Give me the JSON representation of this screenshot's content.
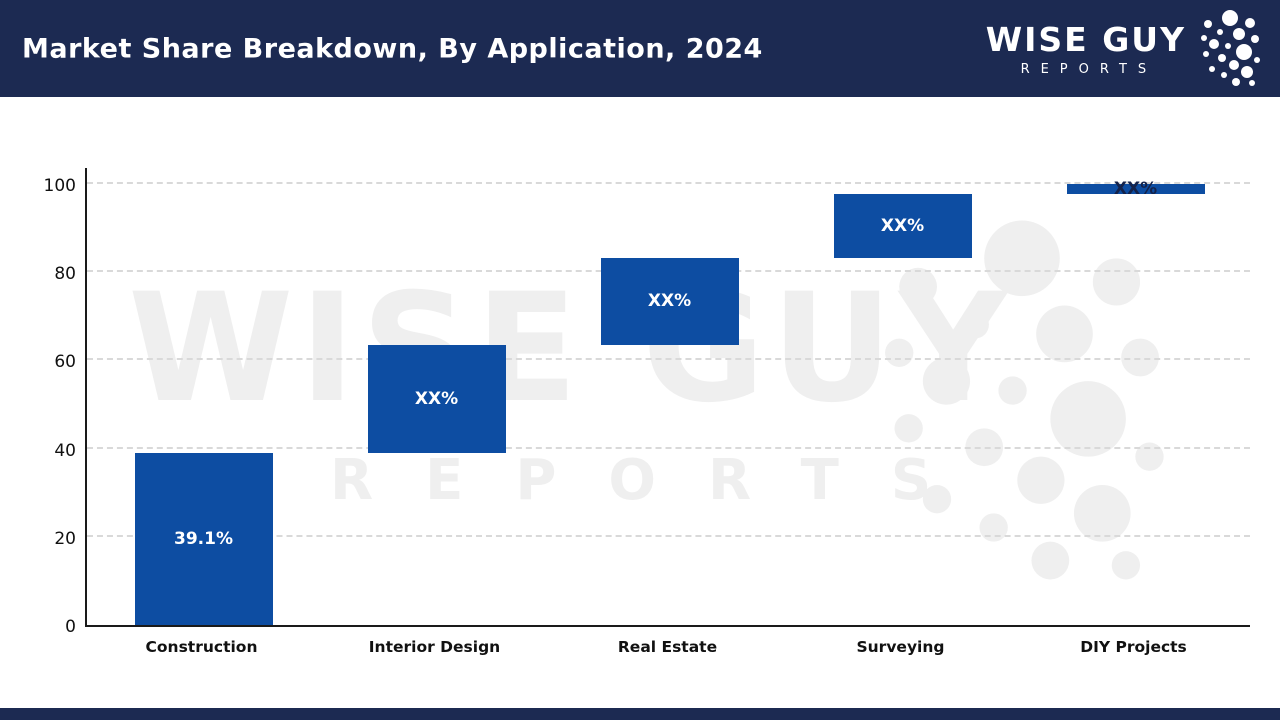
{
  "header": {
    "title": "Market Share Breakdown, By Application, 2024",
    "logo": {
      "line1": "WISE GUY",
      "line2": "REPORTS"
    }
  },
  "watermark": {
    "line1": "WISE GUY",
    "line2": "REPORTS"
  },
  "colors": {
    "header_bg": "#1c2a52",
    "bar": "#0d4da2",
    "grid": "#d9d9d9",
    "axis": "#1a1a1a",
    "watermark": "#efefef"
  },
  "chart_data": {
    "type": "bar",
    "subtype": "waterfall",
    "title": "Market Share Breakdown, By Application, 2024",
    "categories": [
      "Construction",
      "Interior Design",
      "Real Estate",
      "Surveying",
      "DIY Projects"
    ],
    "series": [
      {
        "name": "Market Share",
        "segments": [
          {
            "start": 0,
            "end": 39.1,
            "label": "39.1%"
          },
          {
            "start": 39.1,
            "end": 63.6,
            "label": "XX%"
          },
          {
            "start": 63.6,
            "end": 83.2,
            "label": "XX%"
          },
          {
            "start": 83.2,
            "end": 97.7,
            "label": "XX%"
          },
          {
            "start": 97.7,
            "end": 100,
            "label": "XX%"
          }
        ]
      }
    ],
    "xlabel": "",
    "ylabel": "",
    "ylim": [
      0,
      100
    ],
    "yticks": [
      0,
      20,
      40,
      60,
      80,
      100
    ],
    "grid": "horizontal-dashed",
    "legend": "none",
    "bar_color": "#0d4da2",
    "label_color": "#ffffff",
    "label_color_outside": "#14224a"
  }
}
